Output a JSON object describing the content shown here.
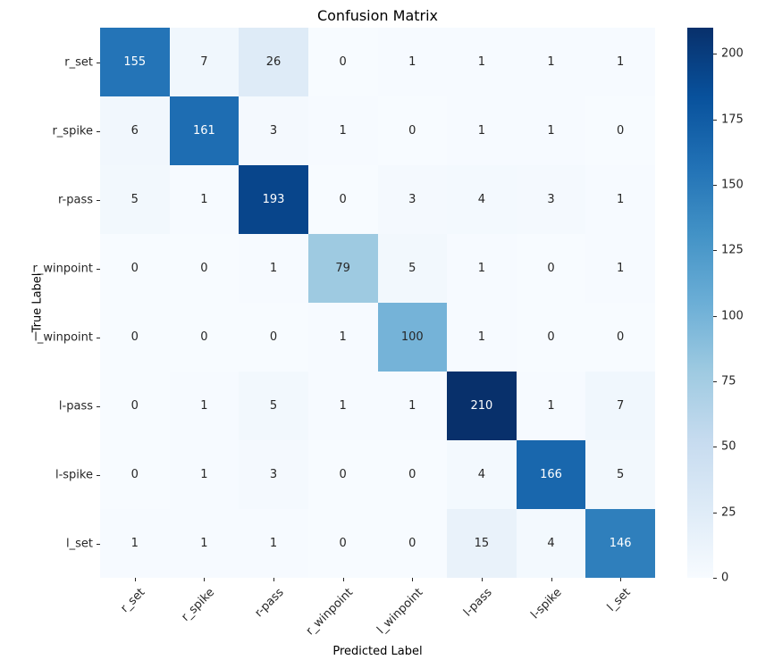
{
  "title": "Confusion Matrix",
  "chart_data": {
    "type": "heatmap",
    "title": "Confusion Matrix",
    "xlabel": "Predicted Label",
    "ylabel": "True Label",
    "x_categories": [
      "r_set",
      "r_spike",
      "r-pass",
      "r_winpoint",
      "l_winpoint",
      "l-pass",
      "l-spike",
      "l_set"
    ],
    "y_categories": [
      "r_set",
      "r_spike",
      "r-pass",
      "r_winpoint",
      "l_winpoint",
      "l-pass",
      "l-spike",
      "l_set"
    ],
    "matrix": [
      [
        155,
        7,
        26,
        0,
        1,
        1,
        1,
        1
      ],
      [
        6,
        161,
        3,
        1,
        0,
        1,
        1,
        0
      ],
      [
        5,
        1,
        193,
        0,
        3,
        4,
        3,
        1
      ],
      [
        0,
        0,
        1,
        79,
        5,
        1,
        0,
        1
      ],
      [
        0,
        0,
        0,
        1,
        100,
        1,
        0,
        0
      ],
      [
        0,
        1,
        5,
        1,
        1,
        210,
        1,
        7
      ],
      [
        0,
        1,
        3,
        0,
        0,
        4,
        166,
        5
      ],
      [
        1,
        1,
        1,
        0,
        0,
        15,
        4,
        146
      ]
    ],
    "vmin": 0,
    "vmax": 210,
    "annotated": true,
    "grid": false,
    "legend_position": "right-colorbar",
    "colormap_name": "Blues",
    "colormap_stops": [
      "#f7fbff",
      "#deebf7",
      "#c6dbef",
      "#9ecae1",
      "#6baed6",
      "#4292c6",
      "#2171b5",
      "#08519c",
      "#08306b"
    ],
    "colorbar_ticks": [
      0,
      25,
      50,
      75,
      100,
      125,
      150,
      175,
      200
    ],
    "annotation_text_colors": {
      "dark": "#262626",
      "light": "#ffffff"
    }
  }
}
